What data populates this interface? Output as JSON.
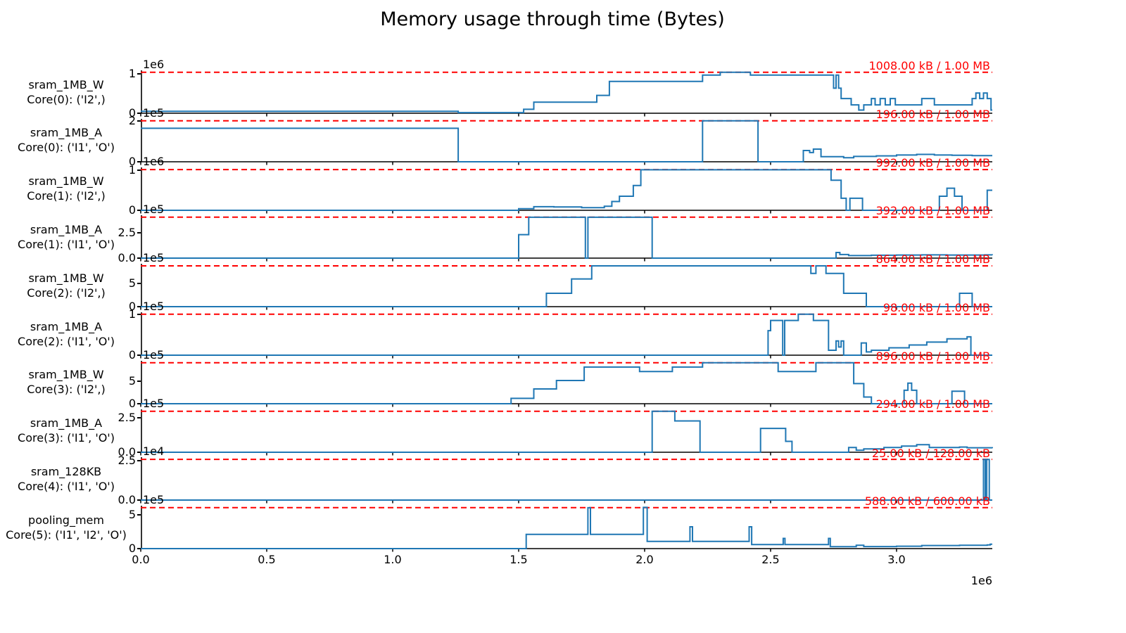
{
  "title": "Memory usage through time (Bytes)",
  "colors": {
    "line": "#1f77b4",
    "limit": "#ff0000",
    "spine": "#000000"
  },
  "xaxis": {
    "tick_labels": [
      "0.0",
      "0.5",
      "1.0",
      "1.5",
      "2.0",
      "2.5",
      "3.0"
    ],
    "tick_values": [
      0,
      0.5,
      1.0,
      1.5,
      2.0,
      2.5,
      3.0
    ],
    "offset_label": "1e6",
    "max": 3.38
  },
  "chart_data": [
    {
      "type": "line",
      "memory": "sram_1MB_W",
      "core": "Core(0): ('I2',)",
      "limit_label": "1008.00 kB / 1.00 MB",
      "limit_bytes": 1032192,
      "ymax": 1080000,
      "scale_offset": "1e6",
      "ytick_top_label": "1",
      "ytick_top_value": 1000000,
      "ytick_zero_label": "0",
      "steps": [
        [
          0,
          48000
        ],
        [
          1.26,
          16000
        ],
        [
          1.52,
          100000
        ],
        [
          1.56,
          280000
        ],
        [
          1.81,
          450000
        ],
        [
          1.86,
          800000
        ],
        [
          2.23,
          960000
        ],
        [
          2.3,
          1030000
        ],
        [
          2.42,
          960000
        ],
        [
          2.75,
          630000
        ],
        [
          2.76,
          960000
        ],
        [
          2.77,
          630000
        ],
        [
          2.78,
          370000
        ],
        [
          2.82,
          210000
        ],
        [
          2.85,
          80000
        ],
        [
          2.87,
          210000
        ],
        [
          2.9,
          370000
        ],
        [
          2.915,
          210000
        ],
        [
          2.935,
          370000
        ],
        [
          2.955,
          210000
        ],
        [
          2.975,
          370000
        ],
        [
          2.995,
          210000
        ],
        [
          3.1,
          370000
        ],
        [
          3.15,
          210000
        ],
        [
          3.3,
          370000
        ],
        [
          3.315,
          510000
        ],
        [
          3.33,
          370000
        ],
        [
          3.345,
          510000
        ],
        [
          3.36,
          370000
        ],
        [
          3.375,
          80000
        ],
        [
          3.38,
          80000
        ]
      ]
    },
    {
      "type": "line",
      "memory": "sram_1MB_A",
      "core": "Core(0): ('I1', 'O')",
      "limit_label": "196.00 kB / 1.00 MB",
      "limit_bytes": 200704,
      "ymax": 210000,
      "scale_offset": "1e5",
      "ytick_top_label": "2",
      "ytick_top_value": 200000,
      "ytick_zero_label": "0",
      "steps": [
        [
          0,
          163840
        ],
        [
          1.26,
          0
        ],
        [
          2.23,
          200704
        ],
        [
          2.45,
          0
        ],
        [
          2.63,
          55000
        ],
        [
          2.655,
          45000
        ],
        [
          2.67,
          62000
        ],
        [
          2.7,
          25000
        ],
        [
          2.79,
          20000
        ],
        [
          2.83,
          26000
        ],
        [
          2.92,
          29000
        ],
        [
          3.0,
          33000
        ],
        [
          3.08,
          36000
        ],
        [
          3.15,
          33000
        ],
        [
          3.22,
          32000
        ],
        [
          3.3,
          30000
        ],
        [
          3.38,
          30000
        ]
      ]
    },
    {
      "type": "line",
      "memory": "sram_1MB_W",
      "core": "Core(1): ('I2',)",
      "limit_label": "992.00 kB / 1.00 MB",
      "limit_bytes": 1015808,
      "ymax": 1070000,
      "scale_offset": "1e6",
      "ytick_top_label": "1",
      "ytick_top_value": 1000000,
      "ytick_zero_label": "0",
      "steps": [
        [
          0,
          0
        ],
        [
          1.5,
          40000
        ],
        [
          1.56,
          90000
        ],
        [
          1.64,
          85000
        ],
        [
          1.75,
          65000
        ],
        [
          1.84,
          100000
        ],
        [
          1.87,
          220000
        ],
        [
          1.9,
          350000
        ],
        [
          1.955,
          620000
        ],
        [
          1.985,
          1010000
        ],
        [
          2.74,
          750000
        ],
        [
          2.78,
          300000
        ],
        [
          2.8,
          0
        ],
        [
          2.815,
          300000
        ],
        [
          2.865,
          0
        ],
        [
          3.17,
          350000
        ],
        [
          3.2,
          550000
        ],
        [
          3.23,
          350000
        ],
        [
          3.26,
          0
        ],
        [
          3.36,
          500000
        ],
        [
          3.38,
          500000
        ]
      ]
    },
    {
      "type": "line",
      "memory": "sram_1MB_A",
      "core": "Core(1): ('I1', 'O')",
      "limit_label": "392.00 kB / 1.00 MB",
      "limit_bytes": 401408,
      "ymax": 420000,
      "scale_offset": "1e5",
      "ytick_top_label": "2.5",
      "ytick_top_value": 250000,
      "ytick_zero_label": "0.0",
      "steps": [
        [
          0,
          0
        ],
        [
          1.5,
          230000
        ],
        [
          1.54,
          400000
        ],
        [
          1.765,
          0
        ],
        [
          1.775,
          400000
        ],
        [
          2.03,
          0
        ],
        [
          2.76,
          55000
        ],
        [
          2.775,
          35000
        ],
        [
          2.81,
          25000
        ],
        [
          2.9,
          28000
        ],
        [
          3.0,
          30000
        ],
        [
          3.1,
          32000
        ],
        [
          3.2,
          30000
        ],
        [
          3.35,
          32000
        ],
        [
          3.38,
          30000
        ]
      ]
    },
    {
      "type": "line",
      "memory": "sram_1MB_W",
      "core": "Core(2): ('I2',)",
      "limit_label": "864.00 kB / 1.00 MB",
      "limit_bytes": 884736,
      "ymax": 930000,
      "scale_offset": "1e5",
      "ytick_top_label": "5",
      "ytick_top_value": 500000,
      "ytick_zero_label": "0",
      "steps": [
        [
          0,
          0
        ],
        [
          1.61,
          290000
        ],
        [
          1.71,
          600000
        ],
        [
          1.79,
          884736
        ],
        [
          2.66,
          720000
        ],
        [
          2.68,
          884736
        ],
        [
          2.72,
          720000
        ],
        [
          2.79,
          290000
        ],
        [
          2.88,
          0
        ],
        [
          3.25,
          290000
        ],
        [
          3.3,
          0
        ],
        [
          3.38,
          0
        ]
      ]
    },
    {
      "type": "line",
      "memory": "sram_1MB_A",
      "core": "Core(2): ('I1', 'O')",
      "limit_label": "98.00 kB / 1.00 MB",
      "limit_bytes": 100352,
      "ymax": 105000,
      "scale_offset": "1e5",
      "ytick_top_label": "1",
      "ytick_top_value": 100000,
      "ytick_zero_label": "0",
      "steps": [
        [
          0,
          0
        ],
        [
          2.49,
          60000
        ],
        [
          2.5,
          85000
        ],
        [
          2.548,
          0
        ],
        [
          2.556,
          85000
        ],
        [
          2.61,
          100352
        ],
        [
          2.67,
          85000
        ],
        [
          2.73,
          12000
        ],
        [
          2.76,
          35000
        ],
        [
          2.77,
          20000
        ],
        [
          2.78,
          35000
        ],
        [
          2.79,
          0
        ],
        [
          2.86,
          30000
        ],
        [
          2.88,
          8000
        ],
        [
          2.9,
          12000
        ],
        [
          2.97,
          18000
        ],
        [
          3.05,
          25000
        ],
        [
          3.12,
          32000
        ],
        [
          3.2,
          40000
        ],
        [
          3.28,
          45000
        ],
        [
          3.295,
          0
        ],
        [
          3.38,
          0
        ]
      ]
    },
    {
      "type": "line",
      "memory": "sram_1MB_W",
      "core": "Core(3): ('I2',)",
      "limit_label": "896.00 kB / 1.00 MB",
      "limit_bytes": 917504,
      "ymax": 960000,
      "scale_offset": "1e5",
      "ytick_top_label": "5",
      "ytick_top_value": 500000,
      "ytick_zero_label": "0",
      "steps": [
        [
          0,
          0
        ],
        [
          1.47,
          120000
        ],
        [
          1.56,
          330000
        ],
        [
          1.65,
          520000
        ],
        [
          1.76,
          820000
        ],
        [
          1.98,
          720000
        ],
        [
          2.11,
          820000
        ],
        [
          2.23,
          917504
        ],
        [
          2.53,
          720000
        ],
        [
          2.68,
          917504
        ],
        [
          2.83,
          450000
        ],
        [
          2.87,
          150000
        ],
        [
          2.9,
          0
        ],
        [
          3.03,
          300000
        ],
        [
          3.045,
          460000
        ],
        [
          3.06,
          300000
        ],
        [
          3.08,
          0
        ],
        [
          3.22,
          280000
        ],
        [
          3.27,
          0
        ],
        [
          3.38,
          0
        ]
      ]
    },
    {
      "type": "line",
      "memory": "sram_1MB_A",
      "core": "Core(3): ('I1', 'O')",
      "limit_label": "294.00 kB / 1.00 MB",
      "limit_bytes": 301056,
      "ymax": 315000,
      "scale_offset": "1e5",
      "ytick_top_label": "2.5",
      "ytick_top_value": 250000,
      "ytick_zero_label": "0.0",
      "steps": [
        [
          0,
          0
        ],
        [
          2.03,
          301056
        ],
        [
          2.12,
          230000
        ],
        [
          2.22,
          0
        ],
        [
          2.46,
          175000
        ],
        [
          2.56,
          80000
        ],
        [
          2.585,
          0
        ],
        [
          2.81,
          35000
        ],
        [
          2.84,
          15000
        ],
        [
          2.87,
          25000
        ],
        [
          2.95,
          35000
        ],
        [
          3.02,
          45000
        ],
        [
          3.08,
          55000
        ],
        [
          3.13,
          35000
        ],
        [
          3.25,
          38000
        ],
        [
          3.28,
          33000
        ],
        [
          3.38,
          30000
        ]
      ]
    },
    {
      "type": "line",
      "memory": "sram_128KB",
      "core": "Core(4): ('I1', 'O')",
      "limit_label": "25.00 kB / 128.00 kB",
      "limit_bytes": 25600,
      "ymax": 27000,
      "scale_offset": "1e4",
      "ytick_top_label": "2.5",
      "ytick_top_value": 25000,
      "ytick_zero_label": "0.0",
      "steps": [
        [
          0,
          0
        ],
        [
          3.345,
          25600
        ],
        [
          3.352,
          0
        ],
        [
          3.358,
          25600
        ],
        [
          3.368,
          0
        ],
        [
          3.38,
          0
        ]
      ]
    },
    {
      "type": "line",
      "memory": "pooling_mem",
      "core": "Core(5): ('I1', 'I2', 'O')",
      "limit_label": "588.00 kB / 600.00 kB",
      "limit_bytes": 602112,
      "ymax": 630000,
      "scale_offset": "1e5",
      "ytick_top_label": "5",
      "ytick_top_value": 500000,
      "ytick_zero_label": "0",
      "steps": [
        [
          0,
          0
        ],
        [
          1.53,
          210000
        ],
        [
          1.775,
          600000
        ],
        [
          1.785,
          210000
        ],
        [
          1.995,
          605000
        ],
        [
          2.01,
          105000
        ],
        [
          2.18,
          320000
        ],
        [
          2.19,
          105000
        ],
        [
          2.415,
          320000
        ],
        [
          2.425,
          60000
        ],
        [
          2.55,
          150000
        ],
        [
          2.557,
          60000
        ],
        [
          2.73,
          150000
        ],
        [
          2.737,
          28000
        ],
        [
          2.84,
          50000
        ],
        [
          2.87,
          30000
        ],
        [
          3.0,
          35000
        ],
        [
          3.1,
          45000
        ],
        [
          3.25,
          50000
        ],
        [
          3.36,
          55000
        ],
        [
          3.372,
          65000
        ],
        [
          3.38,
          65000
        ]
      ]
    }
  ]
}
